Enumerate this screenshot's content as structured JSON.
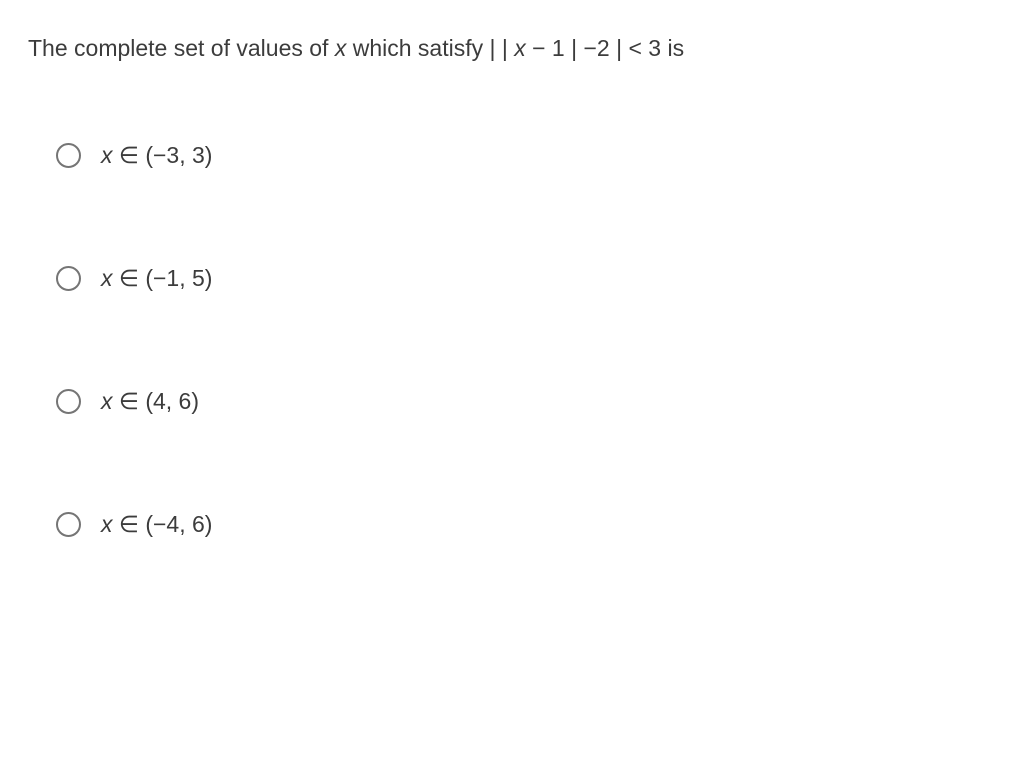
{
  "question": {
    "prefix": "The complete set of values of ",
    "variable": "x",
    "middle": " which satisfy | | ",
    "expr_var": "x",
    "expr_rest": " − 1 | −2 | < 3 is"
  },
  "options": [
    {
      "variable": "x",
      "relation": " ∈ (−3, 3)"
    },
    {
      "variable": "x",
      "relation": " ∈ (−1, 5)"
    },
    {
      "variable": "x",
      "relation": " ∈ (4, 6)"
    },
    {
      "variable": "x",
      "relation": " ∈ (−4, 6)"
    }
  ],
  "styling": {
    "background_color": "#ffffff",
    "text_color": "#3c3c3c",
    "radio_border_color": "#757575",
    "question_fontsize": 23,
    "option_fontsize": 23,
    "radio_size": 25,
    "option_spacing": 96
  }
}
